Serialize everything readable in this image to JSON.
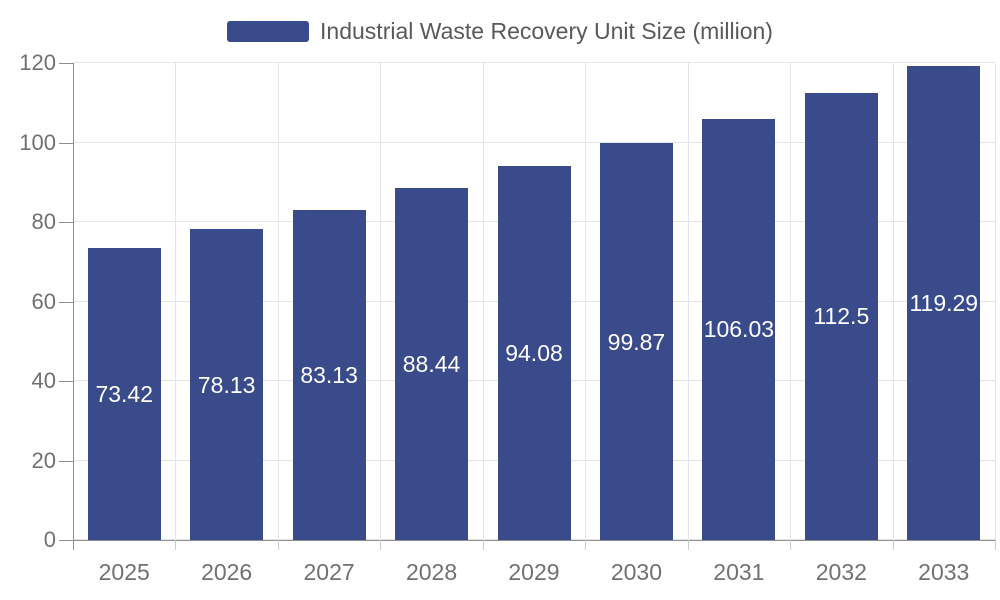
{
  "legend": {
    "label": "Industrial Waste Recovery Unit Size (million)"
  },
  "chart_data": {
    "type": "bar",
    "title": "Industrial Waste Recovery Unit Size (million)",
    "categories": [
      "2025",
      "2026",
      "2027",
      "2028",
      "2029",
      "2030",
      "2031",
      "2032",
      "2033"
    ],
    "series": [
      {
        "name": "Industrial Waste Recovery Unit Size (million)",
        "values": [
          73.42,
          78.13,
          83.13,
          88.44,
          94.08,
          99.87,
          106.03,
          112.5,
          119.29
        ]
      }
    ],
    "value_labels": [
      "73.42",
      "78.13",
      "83.13",
      "88.44",
      "94.08",
      "99.87",
      "106.03",
      "112.5",
      "119.29"
    ],
    "xlabel": "",
    "ylabel": "",
    "ylim": [
      0,
      120
    ],
    "yticks": [
      0,
      20,
      40,
      60,
      80,
      100,
      120
    ],
    "ytick_labels": [
      "0",
      "20",
      "40",
      "60",
      "80",
      "100",
      "120"
    ],
    "grid": true,
    "legend_position": "top-center"
  },
  "colors": {
    "bar": "#3a4b8c",
    "grid": "#e4e5e9",
    "axis": "#8f8f8f",
    "x_band_tick": "#c9c9c9",
    "axis_label": "#717171",
    "legend_text": "#58595b",
    "value_label": "#ffffff",
    "background": "#ffffff"
  }
}
